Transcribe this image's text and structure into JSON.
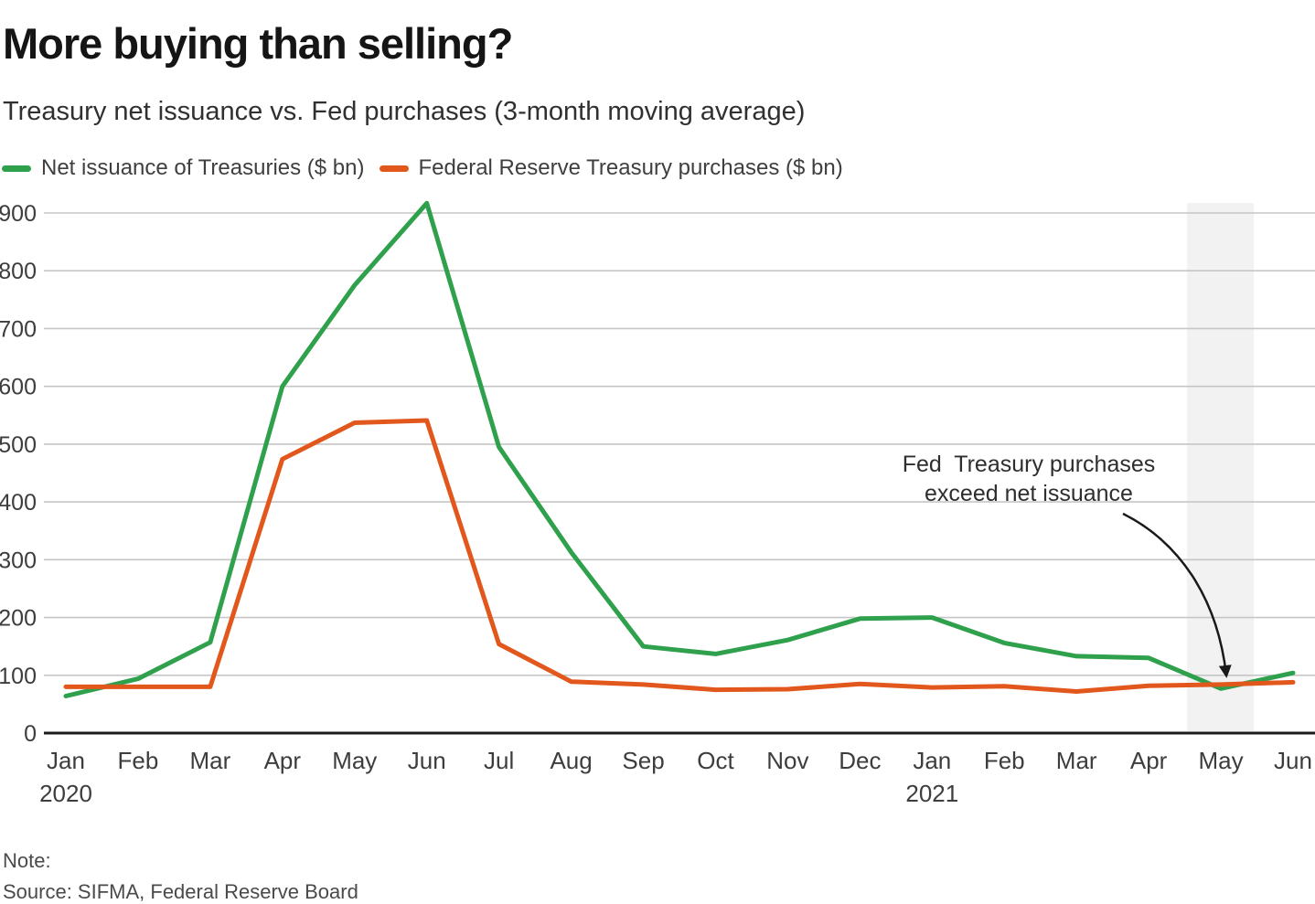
{
  "header": {
    "title": "More buying than selling?",
    "subtitle": "Treasury net issuance vs. Fed purchases (3-month moving average)"
  },
  "chart_data": {
    "type": "line",
    "title": "More buying than selling?",
    "subtitle": "Treasury net issuance vs. Fed purchases (3-month moving average)",
    "categories": [
      "Jan",
      "Feb",
      "Mar",
      "Apr",
      "May",
      "Jun",
      "Jul",
      "Aug",
      "Sep",
      "Oct",
      "Nov",
      "Dec",
      "Jan",
      "Feb",
      "Mar",
      "Apr",
      "May",
      "Jun"
    ],
    "year_markers": [
      {
        "index": 0,
        "label": "2020"
      },
      {
        "index": 12,
        "label": "2021"
      }
    ],
    "ylim": [
      0,
      900
    ],
    "yticks": [
      0,
      100,
      200,
      300,
      400,
      500,
      600,
      700,
      800,
      900
    ],
    "grid": true,
    "legend_position": "top",
    "series": [
      {
        "name": "Net issuance of Treasuries ($ bn)",
        "color": "#2fa04c",
        "values": [
          64,
          94,
          157,
          600,
          775,
          917,
          495,
          313,
          150,
          137,
          161,
          198,
          200,
          156,
          133,
          130,
          77,
          104
        ]
      },
      {
        "name": "Federal Reserve Treasury purchases ($ bn)",
        "color": "#e2571b",
        "values": [
          80,
          80,
          80,
          474,
          537,
          541,
          154,
          89,
          84,
          75,
          76,
          85,
          79,
          81,
          72,
          82,
          84,
          88
        ]
      }
    ],
    "highlight_band": {
      "category": "May 2021",
      "category_index": 16,
      "color": "#f2f2f2"
    },
    "annotation": {
      "text": "Fed  Treasury purchases\nexceed net issuance",
      "arrow_points_to": "May 2021"
    },
    "axis_color": "#1c1c1c",
    "gridline_color": "#c6c6c6"
  },
  "footer": {
    "note_label": "Note:",
    "source": "Source: SIFMA, Federal Reserve Board"
  }
}
